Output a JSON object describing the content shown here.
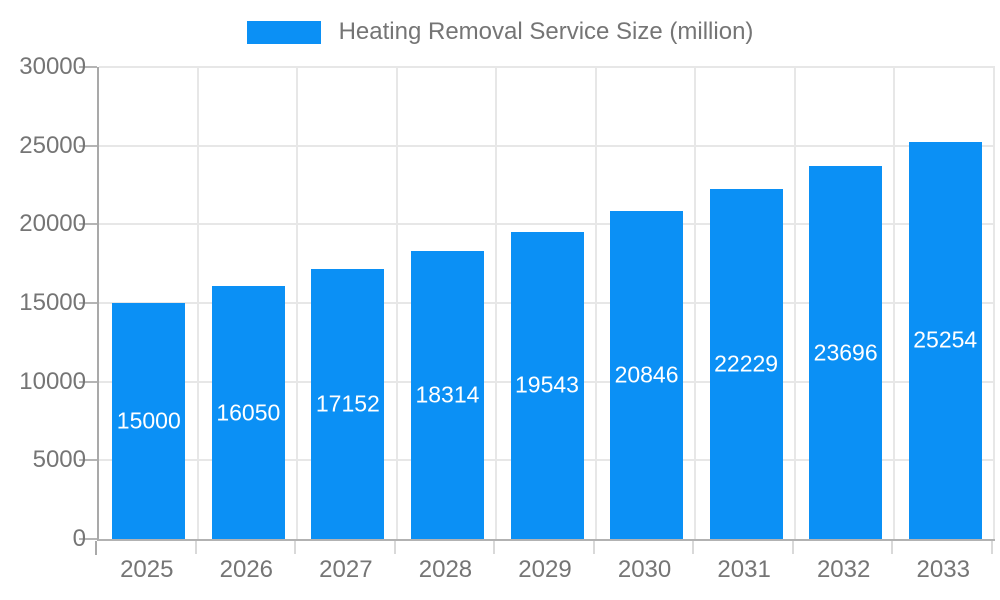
{
  "legend": {
    "items": [
      {
        "label": "Heating Removal Service Size (million)",
        "color": "#0B90F5"
      }
    ],
    "position": "top-center"
  },
  "chart_data": {
    "type": "bar",
    "title": "Heating Removal Service Size (million)",
    "categories": [
      "2025",
      "2026",
      "2027",
      "2028",
      "2029",
      "2030",
      "2031",
      "2032",
      "2033"
    ],
    "values": [
      15000,
      16050,
      17152,
      18314,
      19543,
      20846,
      22229,
      23696,
      25254
    ],
    "xlabel": "",
    "ylabel": "",
    "ylim": [
      0,
      30000
    ],
    "yticks": [
      0,
      5000,
      10000,
      15000,
      20000,
      25000,
      30000
    ],
    "grid": "both",
    "legend_position": "top",
    "series_color": "#0B90F5",
    "data_label_color": "#ffffff",
    "axis_text_color": "#757575",
    "gridline_color": "#e7e7e7",
    "axis_line_color": "#a9a9a9"
  }
}
